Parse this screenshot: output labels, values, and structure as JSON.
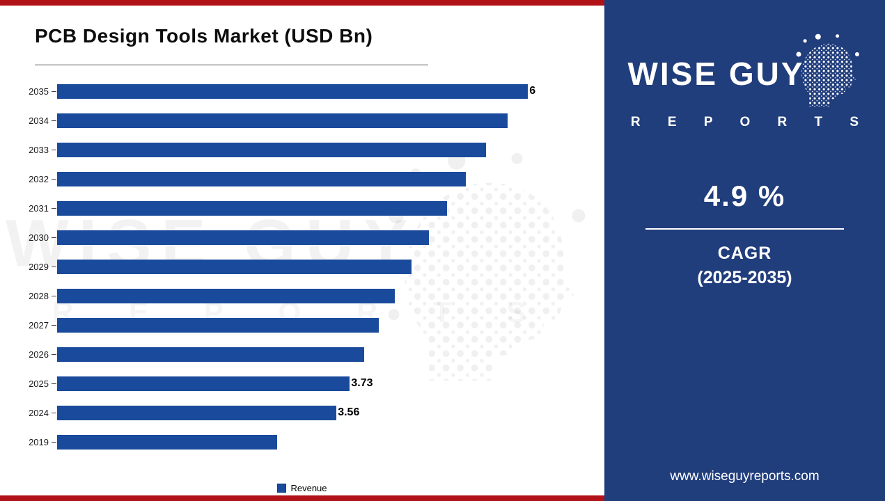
{
  "colors": {
    "bar": "#1a4a9c",
    "panel_bg": "#203d7c",
    "accent_red": "#b01218"
  },
  "chart_data": {
    "type": "bar",
    "orientation": "horizontal",
    "title": "PCB Design Tools Market (USD Bn)",
    "categories": [
      "2035",
      "2034",
      "2033",
      "2032",
      "2031",
      "2030",
      "2029",
      "2028",
      "2027",
      "2026",
      "2025",
      "2024",
      "2019"
    ],
    "values": [
      6.0,
      5.74,
      5.47,
      5.21,
      4.97,
      4.74,
      4.52,
      4.3,
      4.1,
      3.91,
      3.73,
      3.56,
      2.8
    ],
    "bar_labels": [
      "6",
      "",
      "",
      "",
      "",
      "",
      "",
      "",
      "",
      "",
      "3.73",
      "3.56",
      ""
    ],
    "legend": [
      "Revenue"
    ],
    "xlabel": "",
    "ylabel": "",
    "xlim": [
      0,
      6.85
    ],
    "grid": false,
    "legend_position": "bottom-center"
  },
  "sidebar": {
    "logo_line1": "WISE GUY",
    "logo_line2": "R E P O R T S",
    "cagr_value": "4.9 %",
    "cagr_label": "CAGR",
    "cagr_period": "(2025-2035)",
    "website": "www.wiseguyreports.com"
  },
  "watermark": {
    "line1": "WISE GUY",
    "line2": "R E P O R T S"
  }
}
